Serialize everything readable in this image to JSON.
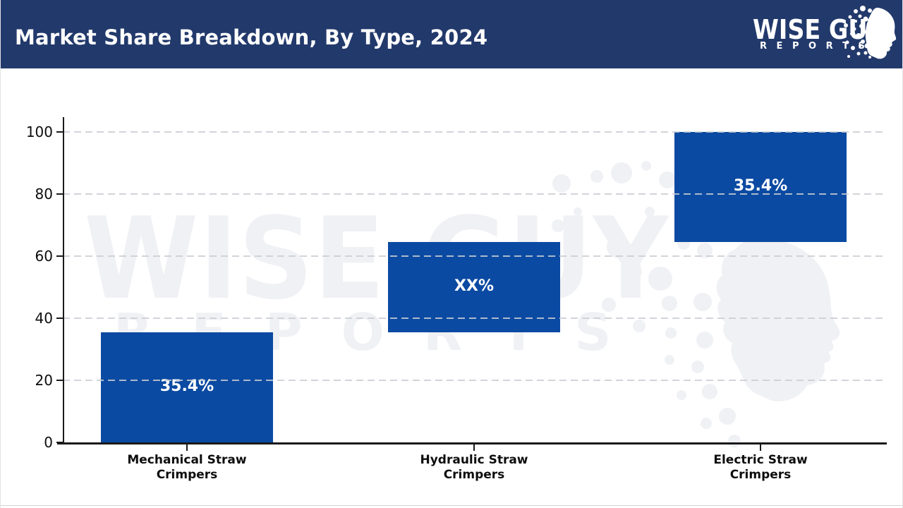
{
  "header": {
    "title": "Market Share Breakdown, By Type, 2024",
    "logo": {
      "line1": "WISE GUY",
      "line2": "R E P O R T S"
    }
  },
  "watermark": {
    "line1": "WISE GUY",
    "line2": "R E P O R T S"
  },
  "colors": {
    "header_bg": "#22396b",
    "bar_blue": "#0b4aa2",
    "gridline": "#c9cdd4",
    "axis": "#1a1a1a",
    "watermark_gray": "#f0f1f4",
    "label_text": "#ffffff"
  },
  "chart_data": {
    "type": "bar",
    "subtype": "waterfall",
    "title": "Market Share Breakdown, By Type, 2024",
    "categories": [
      [
        "Mechanical Straw",
        "Crimpers"
      ],
      [
        "Hydraulic Straw",
        "Crimpers"
      ],
      [
        "Electric Straw",
        "Crimpers"
      ]
    ],
    "segments": [
      {
        "category": "Mechanical Straw Crimpers",
        "start": 0,
        "end": 35.4,
        "label": "35.4%"
      },
      {
        "category": "Hydraulic Straw Crimpers",
        "start": 35.4,
        "end": 64.6,
        "label": "XX%"
      },
      {
        "category": "Electric Straw Crimpers",
        "start": 64.6,
        "end": 100,
        "label": "35.4%"
      }
    ],
    "ylim": [
      0,
      100
    ],
    "yticks": [
      0,
      20,
      40,
      60,
      80,
      100
    ],
    "grid": "horizontal-dashed",
    "legend": "none"
  }
}
